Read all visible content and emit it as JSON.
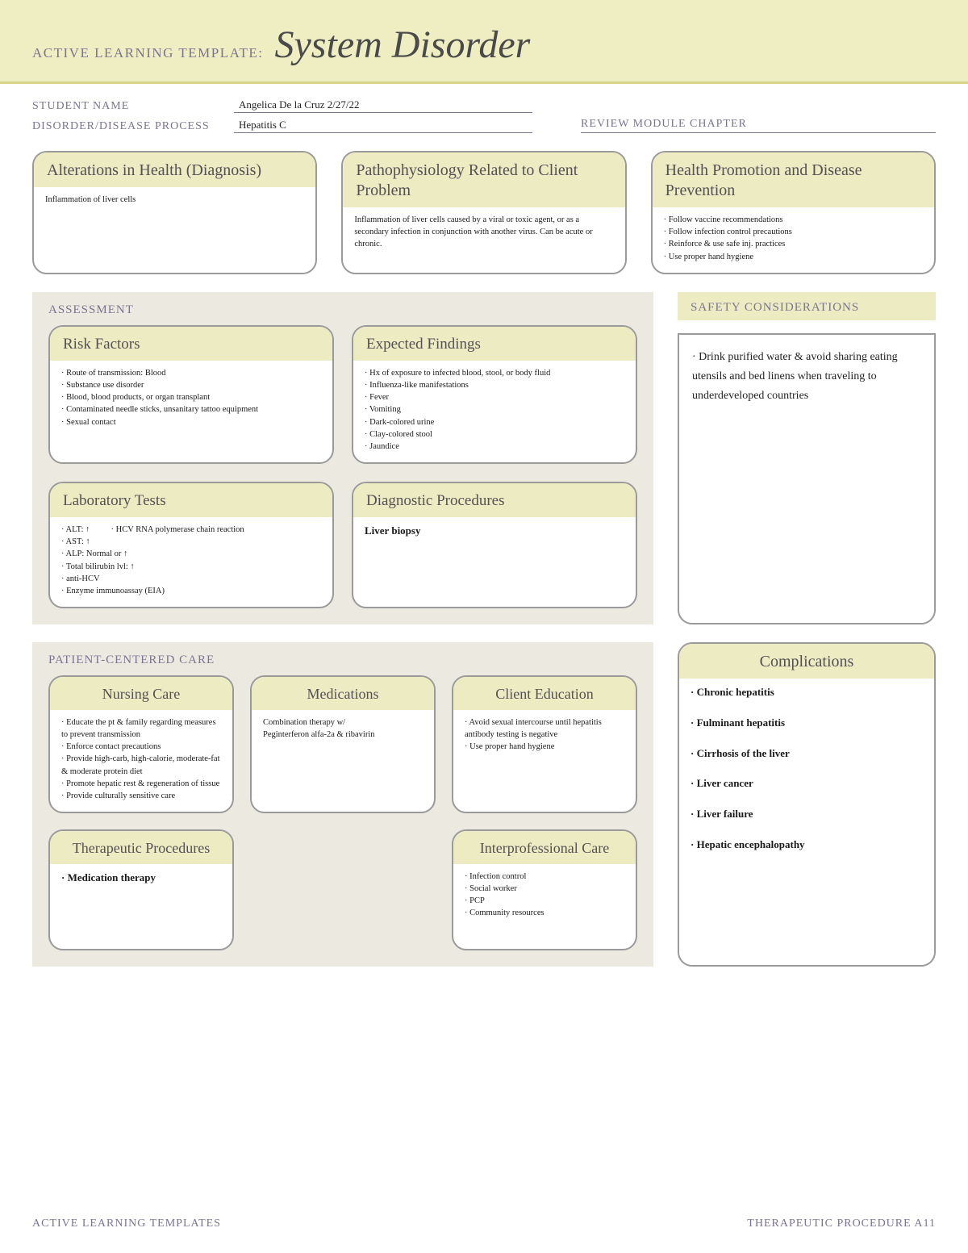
{
  "colors": {
    "banner_bg": "#efeec3",
    "banner_border": "#d8d48a",
    "heading_text": "#7b7490",
    "card_border": "#9a9a9a",
    "card_head_bg": "#ecebc2",
    "section_bg": "#eceae0",
    "page_bg": "#ffffff"
  },
  "fonts": {
    "serif": "Georgia",
    "handwriting": "Comic Sans MS",
    "title_size_pt": 36,
    "label_size_pt": 11,
    "card_head_size_pt": 15,
    "body_size_pt": 8
  },
  "banner": {
    "prefix": "ACTIVE LEARNING TEMPLATE:",
    "title": "System Disorder"
  },
  "meta": {
    "student_label": "STUDENT NAME",
    "student_value": "Angelica De la Cruz   2/27/22",
    "process_label": "DISORDER/DISEASE PROCESS",
    "process_value": "Hepatitis C",
    "review_label": "REVIEW MODULE CHAPTER"
  },
  "row1": {
    "alterations": {
      "title": "Alterations in Health (Diagnosis)",
      "body": "Inflammation of liver cells"
    },
    "patho": {
      "title": "Pathophysiology Related to Client Problem",
      "body": "Inflammation of liver cells caused by a viral or toxic agent, or as a secondary infection in conjunction with another virus. Can be acute or chronic."
    },
    "promo": {
      "title": "Health Promotion and Disease Prevention",
      "body": "· Follow vaccine recommendations\n· Follow infection control precautions\n· Reinforce & use safe inj. practices\n· Use proper hand hygiene"
    }
  },
  "assessment": {
    "title": "ASSESSMENT",
    "risk": {
      "title": "Risk Factors",
      "body": "· Route of transmission: Blood\n· Substance use disorder\n· Blood, blood products, or organ transplant\n· Contaminated needle sticks, unsanitary tattoo equipment\n· Sexual contact"
    },
    "findings": {
      "title": "Expected Findings",
      "body": "· Hx of exposure to infected blood, stool, or body fluid\n· Influenza-like manifestations\n· Fever\n· Vomiting\n· Dark-colored urine\n· Clay-colored stool\n· Jaundice"
    },
    "labs": {
      "title": "Laboratory Tests",
      "body": "· ALT: ↑          · HCV RNA polymerase chain reaction\n· AST: ↑\n· ALP: Normal or ↑\n· Total bilirubin lvl: ↑\n· anti-HCV\n· Enzyme immunoassay (EIA)"
    },
    "diag": {
      "title": "Diagnostic Procedures",
      "body": "Liver biopsy"
    }
  },
  "safety": {
    "title": "SAFETY CONSIDERATIONS",
    "body": "· Drink purified water & avoid sharing eating utensils and bed linens when traveling to underdeveloped countries"
  },
  "pcc": {
    "title": "PATIENT-CENTERED CARE",
    "nursing": {
      "title": "Nursing Care",
      "body": "· Educate the pt & family regarding measures to prevent transmission\n· Enforce contact precautions\n· Provide high-carb, high-calorie, moderate-fat & moderate protein diet\n· Promote hepatic rest & regeneration of tissue\n· Provide culturally sensitive care"
    },
    "meds": {
      "title": "Medications",
      "body": "Combination therapy w/\nPeginterferon alfa-2a & ribavirin"
    },
    "edu": {
      "title": "Client Education",
      "body": "· Avoid sexual intercourse until hepatitis antibody testing is negative\n· Use proper hand hygiene"
    },
    "thera": {
      "title": "Therapeutic Procedures",
      "body": "· Medication therapy"
    },
    "inter": {
      "title": "Interprofessional Care",
      "body": "· Infection control\n· Social worker\n· PCP\n· Community resources"
    }
  },
  "complications": {
    "title": "Complications",
    "body": "· Chronic hepatitis\n\n· Fulminant hepatitis\n\n· Cirrhosis of the liver\n\n· Liver cancer\n\n· Liver failure\n\n· Hepatic encephalopathy"
  },
  "footer": {
    "left": "ACTIVE LEARNING TEMPLATES",
    "right": "THERAPEUTIC PROCEDURE   A11"
  }
}
